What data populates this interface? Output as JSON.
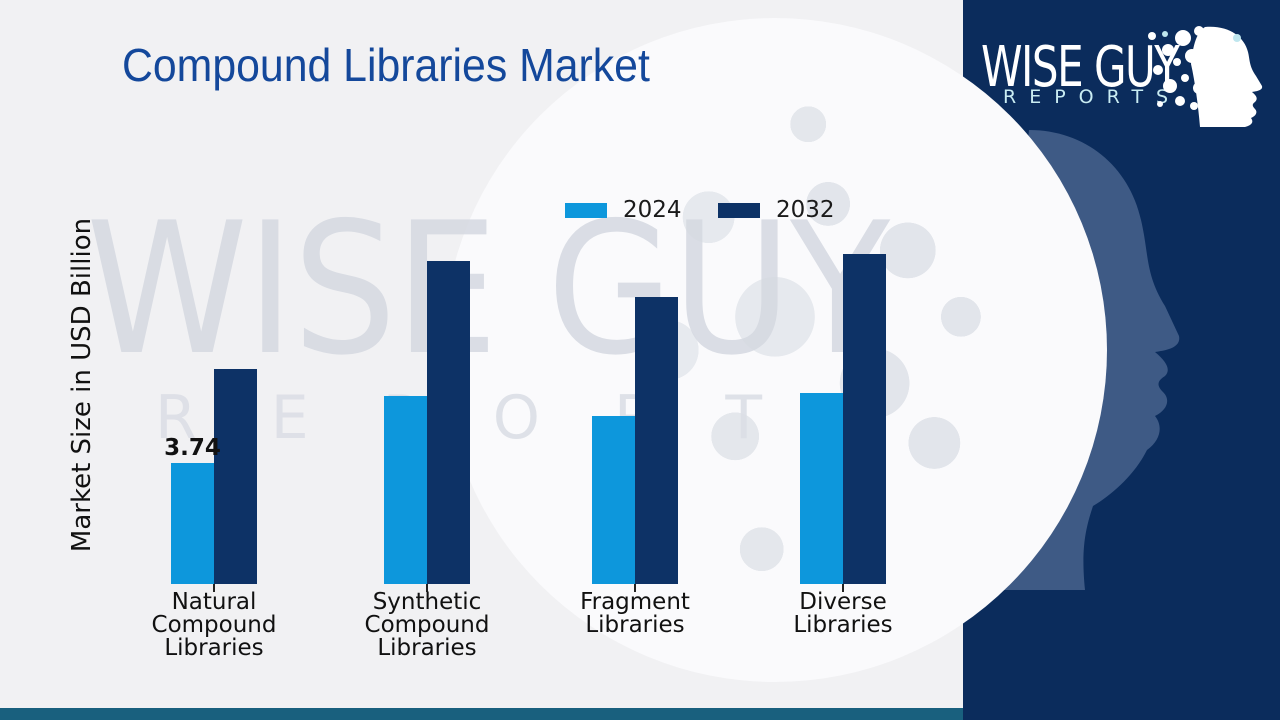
{
  "title": "Compound Libraries Market",
  "watermark": {
    "line1": "WISE GUY",
    "line2": "REPORTS"
  },
  "logo": {
    "line1": "WISE GUY",
    "line2": "REPORTS"
  },
  "chart_data": {
    "type": "bar",
    "title": "Compound Libraries Market",
    "xlabel": "",
    "ylabel": "Market Size in USD Billion",
    "unit": "USD Billion",
    "grid": false,
    "legend_position": "top-center",
    "ylim": [
      0,
      11
    ],
    "categories": [
      [
        "Natural",
        "Compound",
        "Libraries"
      ],
      [
        "Synthetic",
        "Compound",
        "Libraries"
      ],
      [
        "Fragment",
        "Libraries"
      ],
      [
        "Diverse",
        "Libraries"
      ]
    ],
    "series": [
      {
        "name": "2024",
        "color": "#0D97DC",
        "values": [
          3.74,
          5.81,
          5.19,
          5.9
        ],
        "value_labels": [
          "3.74",
          "",
          "",
          ""
        ]
      },
      {
        "name": "2032",
        "color": "#0D3266",
        "values": [
          6.65,
          9.98,
          8.87,
          10.2
        ],
        "value_labels": [
          "",
          "",
          "",
          ""
        ]
      }
    ]
  },
  "colors": {
    "page_bg": "#f1f1f3",
    "title_blue": "#14489B",
    "bar_2024": "#0D97DC",
    "bar_2032": "#0D3266",
    "panel_navy": "#0B2C5C",
    "face_slate": "#3E5A85",
    "teal_strip": "#19607E",
    "watermark_gray": "#d5d9e1"
  }
}
